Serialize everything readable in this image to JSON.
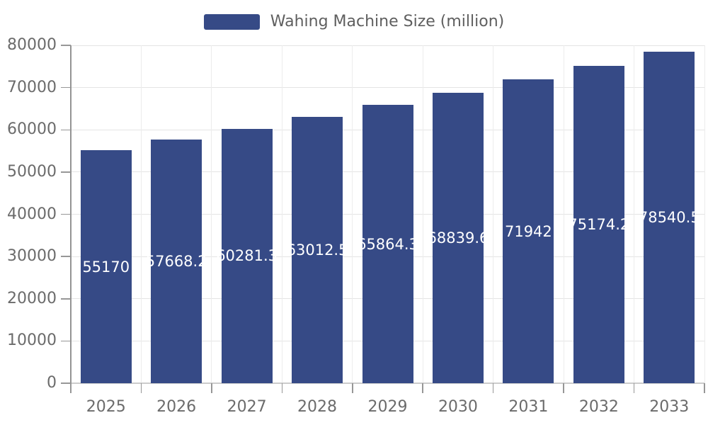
{
  "legend": {
    "label": "Wahing Machine Size (million)",
    "swatch_color": "#364A86"
  },
  "chart_data": {
    "type": "bar",
    "title": "",
    "series_name": "Wahing Machine Size (million)",
    "categories": [
      "2025",
      "2026",
      "2027",
      "2028",
      "2029",
      "2030",
      "2031",
      "2032",
      "2033"
    ],
    "values": [
      55170,
      57668.2,
      60281.3,
      63012.5,
      65864.3,
      68839.6,
      71942,
      75174.2,
      78540.5
    ],
    "bar_labels": [
      "55170",
      "57668.2",
      "60281.3",
      "63012.5",
      "65864.3",
      "68839.6",
      "71942",
      "75174.2",
      "78540.5"
    ],
    "xlabel": "",
    "ylabel": "",
    "ylim": [
      0,
      80000
    ],
    "y_ticks": [
      0,
      10000,
      20000,
      30000,
      40000,
      50000,
      60000,
      70000,
      80000
    ],
    "y_tick_labels": [
      "0",
      "10000",
      "20000",
      "30000",
      "40000",
      "50000",
      "60000",
      "70000",
      "80000"
    ],
    "grid": true,
    "legend_position": "top-center",
    "bar_color": "#364A86",
    "bar_label_color": "#ffffff",
    "bar_label_position": "inside-center",
    "axis_text_color": "#6b6b6b",
    "gridline_color": "#e4e4e4"
  }
}
